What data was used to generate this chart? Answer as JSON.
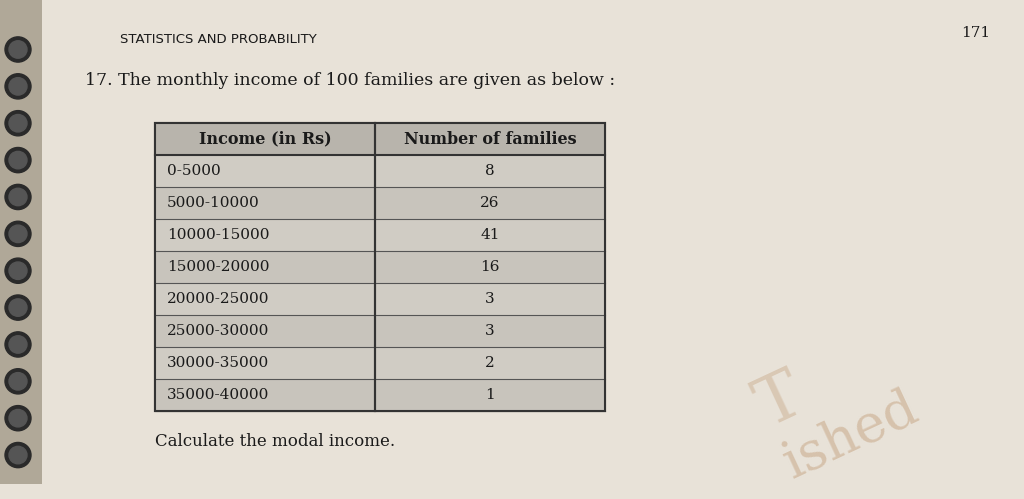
{
  "page_number": "171",
  "chapter_title": "STATISTICS AND PROBABILITY",
  "question_number": "17",
  "question_text": "The monthly income of 100 families are given as below :",
  "col1_header": "Income (in Rs)",
  "col2_header": "Number of families",
  "rows": [
    [
      "0-5000",
      "8"
    ],
    [
      "5000-10000",
      "26"
    ],
    [
      "10000-15000",
      "41"
    ],
    [
      "15000-20000",
      "16"
    ],
    [
      "20000-25000",
      "3"
    ],
    [
      "25000-30000",
      "3"
    ],
    [
      "30000-35000",
      "2"
    ],
    [
      "35000-40000",
      "1"
    ]
  ],
  "footer_text": "Calculate the modal income.",
  "bg_color": "#d6d0c8",
  "table_bg": "#c8c2b8",
  "header_bg": "#b8b2a8",
  "text_color": "#1a1a1a",
  "page_bg": "#e8e2d8"
}
